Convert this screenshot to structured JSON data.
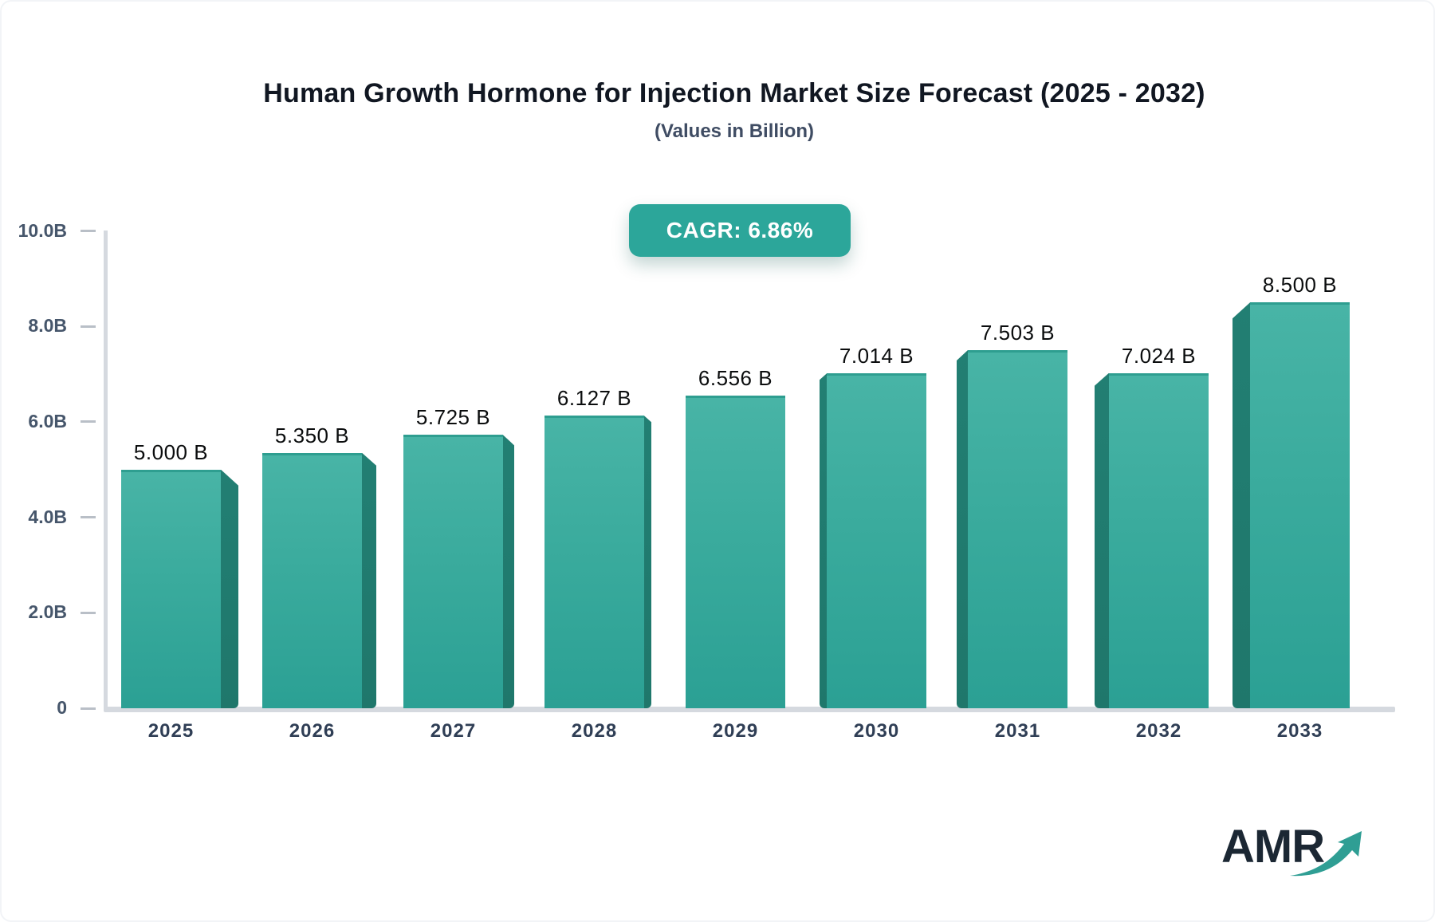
{
  "header": {
    "title": "Human Growth Hormone for Injection Market Size Forecast (2025 - 2032)",
    "subtitle": "(Values in Billion)"
  },
  "badge": {
    "label": "CAGR: 6.86%",
    "bg_color": "#2ca69a",
    "text_color": "#ffffff"
  },
  "chart_data": {
    "type": "bar",
    "title": "Human Growth Hormone for Injection Market Size Forecast (2025 - 2032)",
    "subtitle": "(Values in Billion)",
    "categories": [
      "2025",
      "2026",
      "2027",
      "2028",
      "2029",
      "2030",
      "2031",
      "2032",
      "2033"
    ],
    "values": [
      5.0,
      5.35,
      5.725,
      6.127,
      6.556,
      7.014,
      7.503,
      7.024,
      8.5
    ],
    "value_labels": [
      "5.000 B",
      "5.350 B",
      "5.725 B",
      "6.127 B",
      "6.556 B",
      "7.014 B",
      "7.503 B",
      "7.024 B",
      "8.500 B"
    ],
    "xlabel": "",
    "ylabel": "",
    "ylim": [
      0,
      10
    ],
    "y_ticks": [
      {
        "value": 10,
        "label": "10.0B"
      },
      {
        "value": 8,
        "label": "8.0B"
      },
      {
        "value": 6,
        "label": "6.0B"
      },
      {
        "value": 4,
        "label": "4.0B"
      },
      {
        "value": 2,
        "label": "2.0B"
      },
      {
        "value": 0,
        "label": "0"
      }
    ],
    "grid": "off",
    "legend": "none",
    "bar_style": "3d-bevel",
    "colors": {
      "bar_face_top": "#48b4a6",
      "bar_face_bottom": "#2ba094",
      "bar_top_stroke": "#2e9e90",
      "bar_side": "#1f776b",
      "axis": "#d5d9df",
      "tick": "#b9bfc7",
      "y_label": "#46566b",
      "x_label": "#2f3e55",
      "value_label": "#0b0d0e"
    }
  },
  "logo": {
    "text": "AMR",
    "arrow_color": "#2f9e94",
    "text_color": "#1b2733"
  }
}
